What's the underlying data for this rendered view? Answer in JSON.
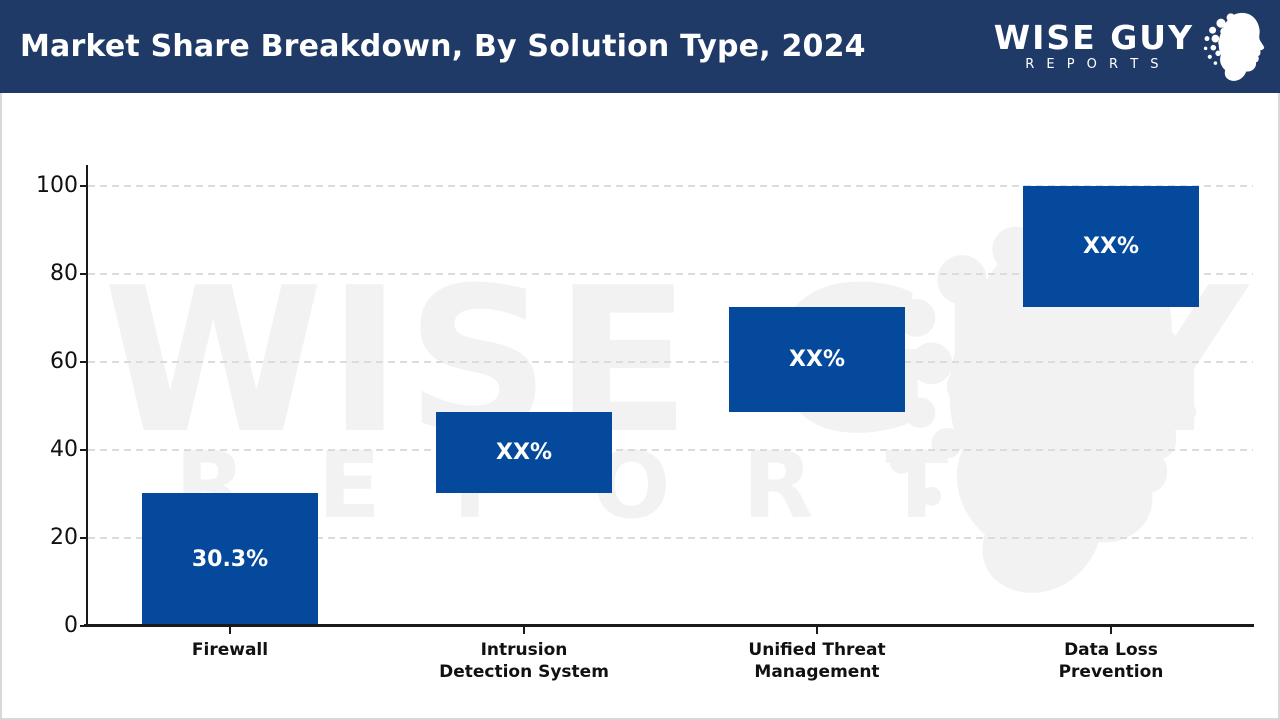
{
  "header": {
    "title": "Market Share Breakdown, By Solution Type, 2024",
    "logo": {
      "name": "WISE GUY",
      "tagline": "R E P O R T S"
    }
  },
  "watermark": {
    "name": "WISE GUY",
    "tagline": "R E P O R T S"
  },
  "chart_data": {
    "type": "bar",
    "subtype": "waterfall-segments",
    "title": "Market Share Breakdown, By Solution Type, 2024",
    "xlabel": "",
    "ylabel": "",
    "ylim": [
      0,
      100
    ],
    "yticks": [
      0,
      20,
      40,
      60,
      80,
      100
    ],
    "grid": {
      "axis": "y",
      "style": "dashed",
      "color": "#dcdcdc"
    },
    "legend": "none",
    "categories": [
      {
        "lines": [
          "Firewall"
        ]
      },
      {
        "lines": [
          "Intrusion",
          "Detection System"
        ]
      },
      {
        "lines": [
          "Unified Threat",
          "Management"
        ]
      },
      {
        "lines": [
          "Data Loss",
          "Prevention"
        ]
      }
    ],
    "series": [
      {
        "name": "Market share (%)",
        "segments": [
          {
            "category": "Firewall",
            "start": 0,
            "end": 30.3,
            "label": "30.3%"
          },
          {
            "category": "Intrusion Detection System",
            "start": 30.3,
            "end": 48.6,
            "label": "XX%"
          },
          {
            "category": "Unified Threat Management",
            "start": 48.6,
            "end": 72.5,
            "label": "XX%"
          },
          {
            "category": "Data Loss Prevention",
            "start": 72.5,
            "end": 100,
            "label": "XX%"
          }
        ]
      }
    ],
    "colors": {
      "bar": "#05499c",
      "bar_label": "#ffffff",
      "header_bg": "#203a68",
      "axis": "#1a1a1a",
      "grid": "#dcdcdc",
      "watermark": "#f2f2f2"
    }
  }
}
